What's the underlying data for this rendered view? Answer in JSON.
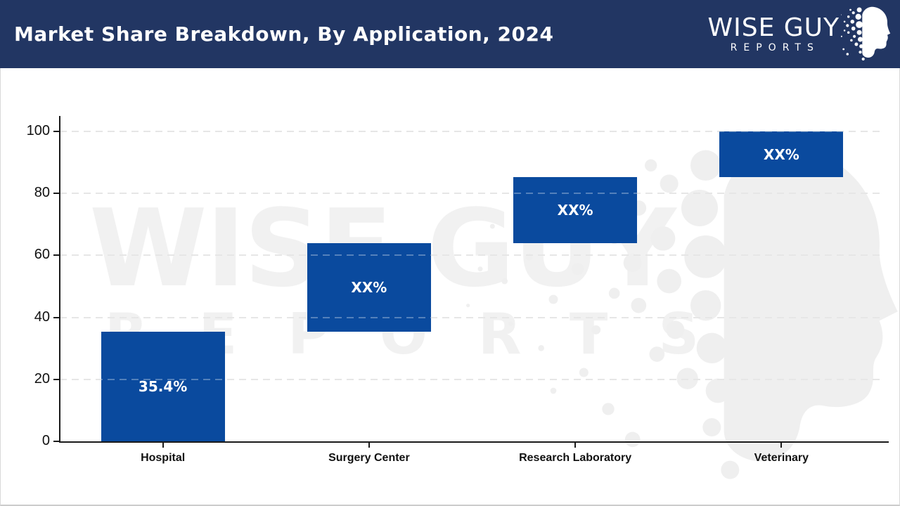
{
  "header": {
    "title": "Market Share Breakdown, By Application, 2024",
    "logo": {
      "wordmark": "WISE GUY",
      "subtitle": "REPORTS"
    }
  },
  "watermark": {
    "line1": "WISE GUY",
    "line2": "REPORTS"
  },
  "colors": {
    "header_bg": "#223663",
    "bar": "#0a4a9e",
    "axis": "#1a1a1a",
    "grid": "#dcdcdc",
    "value_label": "#ffffff"
  },
  "chart_data": {
    "type": "bar",
    "variant": "waterfall-breakdown",
    "title": "Market Share Breakdown, By Application, 2024",
    "categories": [
      "Hospital",
      "Surgery Center",
      "Research Laboratory",
      "Veterinary"
    ],
    "segments": [
      {
        "category": "Hospital",
        "start": 0,
        "end": 35.4,
        "label": "35.4%"
      },
      {
        "category": "Surgery Center",
        "start": 35.4,
        "end": 63.9,
        "label": "XX%"
      },
      {
        "category": "Research Laboratory",
        "start": 63.9,
        "end": 85.2,
        "label": "XX%"
      },
      {
        "category": "Veterinary",
        "start": 85.2,
        "end": 100,
        "label": "XX%"
      }
    ],
    "yticks": [
      0,
      20,
      40,
      60,
      80,
      100
    ],
    "ylim": [
      0,
      105
    ],
    "xlabel": "",
    "ylabel": "",
    "legend": "none",
    "grid": {
      "horizontal": true,
      "style": "dashed"
    }
  }
}
